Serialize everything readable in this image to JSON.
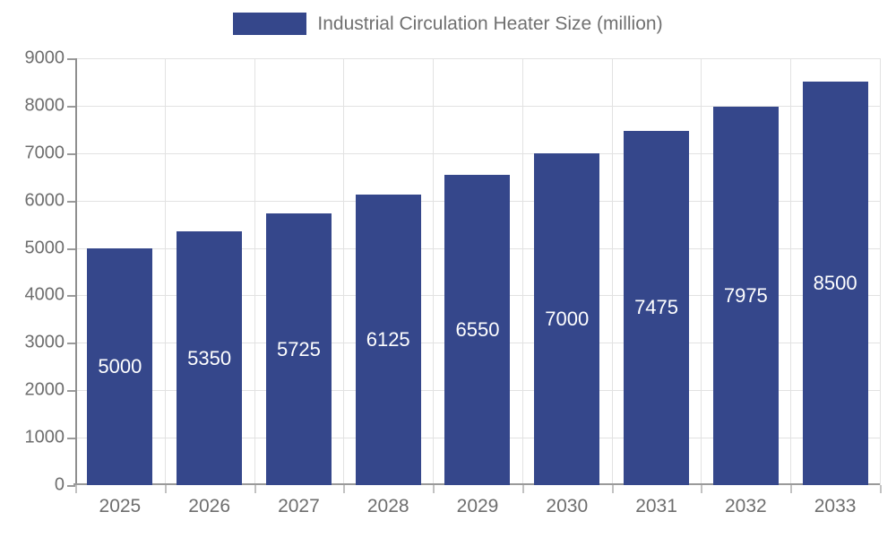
{
  "chart_data": {
    "type": "bar",
    "title": "Industrial Circulation Heater Size (million)",
    "categories": [
      "2025",
      "2026",
      "2027",
      "2028",
      "2029",
      "2030",
      "2031",
      "2032",
      "2033"
    ],
    "values": [
      5000,
      5350,
      5725,
      6125,
      6550,
      7000,
      7475,
      7975,
      8500
    ],
    "xlabel": "",
    "ylabel": "",
    "ylim": [
      0,
      9000
    ],
    "ytick_step": 1000,
    "ytick_labels": [
      "0",
      "1000",
      "2000",
      "3000",
      "4000",
      "5000",
      "6000",
      "7000",
      "8000",
      "9000"
    ],
    "grid": true,
    "legend_position": "top-center",
    "data_labels": "inside-center-white",
    "colors": {
      "bar": "#35478B",
      "gridline": "#e2e2e2",
      "axis_line": "#8f8f8f",
      "tick_text": "#6e6e6e",
      "legend_text": "#707070",
      "bar_label_text": "#ffffff",
      "background": "#ffffff"
    }
  },
  "legend": {
    "label": "Industrial Circulation Heater Size (million)"
  }
}
